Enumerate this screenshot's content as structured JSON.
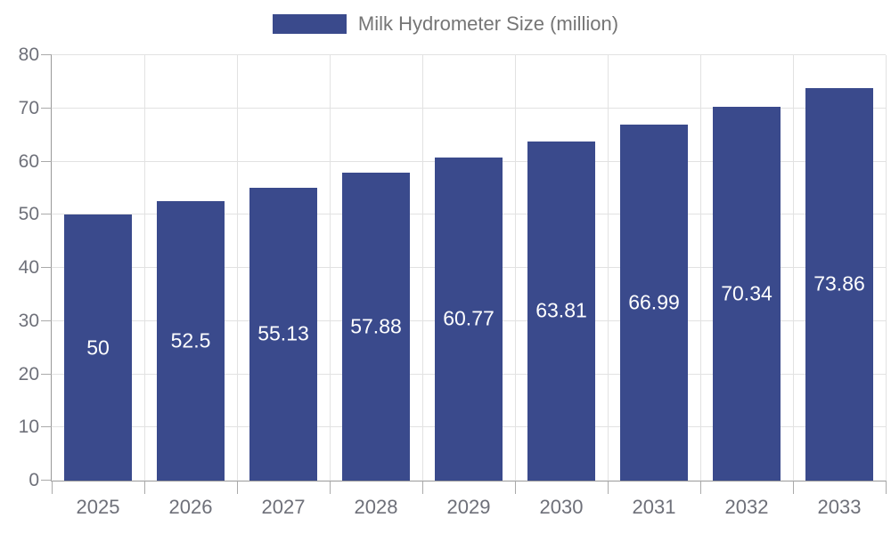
{
  "chart": {
    "legend": {
      "label": "Milk Hydrometer Size (million)"
    },
    "colors": {
      "bar": "#3a4a8c",
      "grid": "#e2e2e2",
      "axis": "#999999",
      "tick": "#aaaaaa",
      "axis_text": "#6e7079",
      "legend_text": "#757575",
      "value_label": "#ffffff",
      "background": "#ffffff"
    }
  },
  "chart_data": {
    "type": "bar",
    "title": "Milk Hydrometer Size (million)",
    "categories": [
      "2025",
      "2026",
      "2027",
      "2028",
      "2029",
      "2030",
      "2031",
      "2032",
      "2033"
    ],
    "values": [
      50,
      52.5,
      55.13,
      57.88,
      60.77,
      63.81,
      66.99,
      70.34,
      73.86
    ],
    "value_labels": [
      "50",
      "52.5",
      "55.13",
      "57.88",
      "60.77",
      "63.81",
      "66.99",
      "70.34",
      "73.86"
    ],
    "xlabel": "",
    "ylabel": "",
    "ylim": [
      0,
      80
    ],
    "yticks": [
      0,
      10,
      20,
      30,
      40,
      50,
      60,
      70,
      80
    ],
    "grid": true,
    "legend_position": "top",
    "value_label_position": "center-inside"
  }
}
